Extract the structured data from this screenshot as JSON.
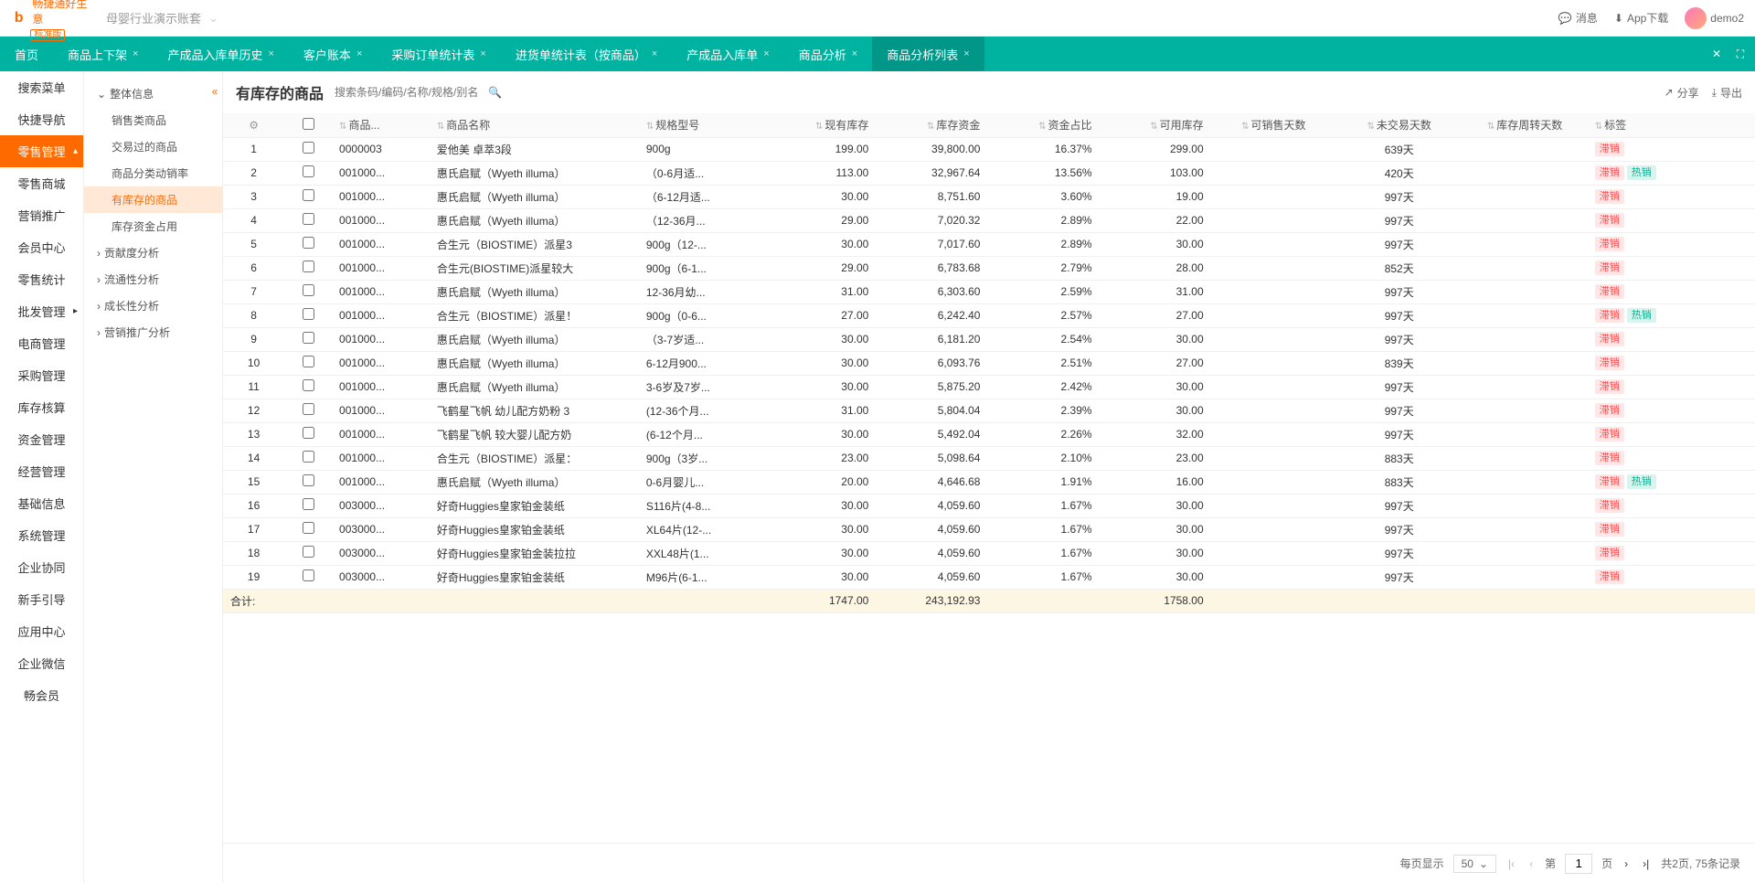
{
  "header": {
    "brand": "畅捷通好生意",
    "edition": "标准版",
    "account": "母婴行业演示账套",
    "msg": "消息",
    "download": "App下载",
    "user": "demo2"
  },
  "tabs": [
    {
      "label": "首页",
      "close": false,
      "active": false
    },
    {
      "label": "商品上下架",
      "close": true,
      "active": false
    },
    {
      "label": "产成品入库单历史",
      "close": true,
      "active": false
    },
    {
      "label": "客户账本",
      "close": true,
      "active": false
    },
    {
      "label": "采购订单统计表",
      "close": true,
      "active": false
    },
    {
      "label": "进货单统计表（按商品）",
      "close": true,
      "active": false
    },
    {
      "label": "产成品入库单",
      "close": true,
      "active": false
    },
    {
      "label": "商品分析",
      "close": true,
      "active": false
    },
    {
      "label": "商品分析列表",
      "close": true,
      "active": true
    }
  ],
  "leftnav": [
    {
      "label": "搜索菜单",
      "active": false,
      "arrow": false
    },
    {
      "label": "快捷导航",
      "active": false,
      "arrow": false
    },
    {
      "label": "零售管理",
      "active": true,
      "arrow": true
    },
    {
      "label": "零售商城",
      "active": false,
      "arrow": false
    },
    {
      "label": "营销推广",
      "active": false,
      "arrow": false
    },
    {
      "label": "会员中心",
      "active": false,
      "arrow": false
    },
    {
      "label": "零售统计",
      "active": false,
      "arrow": false
    },
    {
      "label": "批发管理",
      "active": false,
      "arrow": true
    },
    {
      "label": "电商管理",
      "active": false,
      "arrow": false
    },
    {
      "label": "采购管理",
      "active": false,
      "arrow": false
    },
    {
      "label": "库存核算",
      "active": false,
      "arrow": false
    },
    {
      "label": "资金管理",
      "active": false,
      "arrow": false
    },
    {
      "label": "经营管理",
      "active": false,
      "arrow": false
    },
    {
      "label": "基础信息",
      "active": false,
      "arrow": false
    },
    {
      "label": "系统管理",
      "active": false,
      "arrow": false
    },
    {
      "label": "企业协同",
      "active": false,
      "arrow": false
    },
    {
      "label": "新手引导",
      "active": false,
      "arrow": false
    },
    {
      "label": "应用中心",
      "active": false,
      "arrow": false
    },
    {
      "label": "企业微信",
      "active": false,
      "arrow": false
    },
    {
      "label": "畅会员",
      "active": false,
      "arrow": false
    }
  ],
  "tree": {
    "root": "整体信息",
    "group1": [
      {
        "label": "销售类商品",
        "active": false
      },
      {
        "label": "交易过的商品",
        "active": false
      },
      {
        "label": "商品分类动销率",
        "active": false
      },
      {
        "label": "有库存的商品",
        "active": true
      },
      {
        "label": "库存资金占用",
        "active": false
      }
    ],
    "group2": [
      {
        "label": "贡献度分析"
      },
      {
        "label": "流通性分析"
      },
      {
        "label": "成长性分析"
      },
      {
        "label": "营销推广分析"
      }
    ]
  },
  "content": {
    "title": "有库存的商品",
    "search_placeholder": "搜索条码/编码/名称/规格/别名",
    "share": "分享",
    "export": "导出"
  },
  "columns": {
    "code": "商品...",
    "name": "商品名称",
    "spec": "规格型号",
    "stock": "现有库存",
    "fund": "库存资金",
    "ratio": "资金占比",
    "avail": "可用库存",
    "saledays": "可销售天数",
    "notrade": "未交易天数",
    "turndays": "库存周转天数",
    "tags": "标签"
  },
  "tag_labels": {
    "slow": "滞销",
    "hot": "热销"
  },
  "rows": [
    {
      "idx": "1",
      "code": "0000003",
      "name": "爱他美 卓萃3段",
      "spec": "900g",
      "stock": "199.00",
      "fund": "39,800.00",
      "ratio": "16.37%",
      "avail": "299.00",
      "saledays": "",
      "notrade": "639天",
      "turndays": "",
      "tags": [
        "slow"
      ]
    },
    {
      "idx": "2",
      "code": "001000...",
      "name": "惠氏启赋（Wyeth illuma）",
      "spec": "（0-6月适...",
      "stock": "113.00",
      "fund": "32,967.64",
      "ratio": "13.56%",
      "avail": "103.00",
      "saledays": "",
      "notrade": "420天",
      "turndays": "",
      "tags": [
        "slow",
        "hot"
      ]
    },
    {
      "idx": "3",
      "code": "001000...",
      "name": "惠氏启赋（Wyeth illuma）",
      "spec": "（6-12月适...",
      "stock": "30.00",
      "fund": "8,751.60",
      "ratio": "3.60%",
      "avail": "19.00",
      "saledays": "",
      "notrade": "997天",
      "turndays": "",
      "tags": [
        "slow"
      ]
    },
    {
      "idx": "4",
      "code": "001000...",
      "name": "惠氏启赋（Wyeth illuma）",
      "spec": "（12-36月...",
      "stock": "29.00",
      "fund": "7,020.32",
      "ratio": "2.89%",
      "avail": "22.00",
      "saledays": "",
      "notrade": "997天",
      "turndays": "",
      "tags": [
        "slow"
      ]
    },
    {
      "idx": "5",
      "code": "001000...",
      "name": "合生元（BIOSTIME）派星3",
      "spec": "900g（12-...",
      "stock": "30.00",
      "fund": "7,017.60",
      "ratio": "2.89%",
      "avail": "30.00",
      "saledays": "",
      "notrade": "997天",
      "turndays": "",
      "tags": [
        "slow"
      ]
    },
    {
      "idx": "6",
      "code": "001000...",
      "name": "合生元(BIOSTIME)派星较大",
      "spec": "900g（6-1...",
      "stock": "29.00",
      "fund": "6,783.68",
      "ratio": "2.79%",
      "avail": "28.00",
      "saledays": "",
      "notrade": "852天",
      "turndays": "",
      "tags": [
        "slow"
      ]
    },
    {
      "idx": "7",
      "code": "001000...",
      "name": "惠氏启赋（Wyeth illuma）",
      "spec": "12-36月幼...",
      "stock": "31.00",
      "fund": "6,303.60",
      "ratio": "2.59%",
      "avail": "31.00",
      "saledays": "",
      "notrade": "997天",
      "turndays": "",
      "tags": [
        "slow"
      ]
    },
    {
      "idx": "8",
      "code": "001000...",
      "name": "合生元（BIOSTIME）派星！",
      "spec": "900g（0-6...",
      "stock": "27.00",
      "fund": "6,242.40",
      "ratio": "2.57%",
      "avail": "27.00",
      "saledays": "",
      "notrade": "997天",
      "turndays": "",
      "tags": [
        "slow",
        "hot"
      ]
    },
    {
      "idx": "9",
      "code": "001000...",
      "name": "惠氏启赋（Wyeth illuma）",
      "spec": "（3-7岁适...",
      "stock": "30.00",
      "fund": "6,181.20",
      "ratio": "2.54%",
      "avail": "30.00",
      "saledays": "",
      "notrade": "997天",
      "turndays": "",
      "tags": [
        "slow"
      ]
    },
    {
      "idx": "10",
      "code": "001000...",
      "name": "惠氏启赋（Wyeth illuma）",
      "spec": "6-12月900...",
      "stock": "30.00",
      "fund": "6,093.76",
      "ratio": "2.51%",
      "avail": "27.00",
      "saledays": "",
      "notrade": "839天",
      "turndays": "",
      "tags": [
        "slow"
      ]
    },
    {
      "idx": "11",
      "code": "001000...",
      "name": "惠氏启赋（Wyeth illuma）",
      "spec": "3-6岁及7岁...",
      "stock": "30.00",
      "fund": "5,875.20",
      "ratio": "2.42%",
      "avail": "30.00",
      "saledays": "",
      "notrade": "997天",
      "turndays": "",
      "tags": [
        "slow"
      ]
    },
    {
      "idx": "12",
      "code": "001000...",
      "name": "飞鹤星飞帆 幼儿配方奶粉 3",
      "spec": "(12-36个月...",
      "stock": "31.00",
      "fund": "5,804.04",
      "ratio": "2.39%",
      "avail": "30.00",
      "saledays": "",
      "notrade": "997天",
      "turndays": "",
      "tags": [
        "slow"
      ]
    },
    {
      "idx": "13",
      "code": "001000...",
      "name": "飞鹤星飞帆 较大婴儿配方奶",
      "spec": "(6-12个月...",
      "stock": "30.00",
      "fund": "5,492.04",
      "ratio": "2.26%",
      "avail": "32.00",
      "saledays": "",
      "notrade": "997天",
      "turndays": "",
      "tags": [
        "slow"
      ]
    },
    {
      "idx": "14",
      "code": "001000...",
      "name": "合生元（BIOSTIME）派星：",
      "spec": "900g（3岁...",
      "stock": "23.00",
      "fund": "5,098.64",
      "ratio": "2.10%",
      "avail": "23.00",
      "saledays": "",
      "notrade": "883天",
      "turndays": "",
      "tags": [
        "slow"
      ]
    },
    {
      "idx": "15",
      "code": "001000...",
      "name": "惠氏启赋（Wyeth illuma）",
      "spec": "0-6月婴儿...",
      "stock": "20.00",
      "fund": "4,646.68",
      "ratio": "1.91%",
      "avail": "16.00",
      "saledays": "",
      "notrade": "883天",
      "turndays": "",
      "tags": [
        "slow",
        "hot"
      ]
    },
    {
      "idx": "16",
      "code": "003000...",
      "name": "好奇Huggies皇家铂金装纸",
      "spec": "S116片(4-8...",
      "stock": "30.00",
      "fund": "4,059.60",
      "ratio": "1.67%",
      "avail": "30.00",
      "saledays": "",
      "notrade": "997天",
      "turndays": "",
      "tags": [
        "slow"
      ]
    },
    {
      "idx": "17",
      "code": "003000...",
      "name": "好奇Huggies皇家铂金装纸",
      "spec": "XL64片(12-...",
      "stock": "30.00",
      "fund": "4,059.60",
      "ratio": "1.67%",
      "avail": "30.00",
      "saledays": "",
      "notrade": "997天",
      "turndays": "",
      "tags": [
        "slow"
      ]
    },
    {
      "idx": "18",
      "code": "003000...",
      "name": "好奇Huggies皇家铂金装拉拉",
      "spec": "XXL48片(1...",
      "stock": "30.00",
      "fund": "4,059.60",
      "ratio": "1.67%",
      "avail": "30.00",
      "saledays": "",
      "notrade": "997天",
      "turndays": "",
      "tags": [
        "slow"
      ]
    },
    {
      "idx": "19",
      "code": "003000...",
      "name": "好奇Huggies皇家铂金装纸",
      "spec": "M96片(6-1...",
      "stock": "30.00",
      "fund": "4,059.60",
      "ratio": "1.67%",
      "avail": "30.00",
      "saledays": "",
      "notrade": "997天",
      "turndays": "",
      "tags": [
        "slow"
      ]
    }
  ],
  "totals": {
    "label": "合计:",
    "stock": "1747.00",
    "fund": "243,192.93",
    "avail": "1758.00"
  },
  "footer": {
    "page_size_label": "每页显示",
    "page_size": "50",
    "page_label_pre": "第",
    "page_current": "1",
    "page_label_post": "页",
    "summary": "共2页, 75条记录"
  }
}
